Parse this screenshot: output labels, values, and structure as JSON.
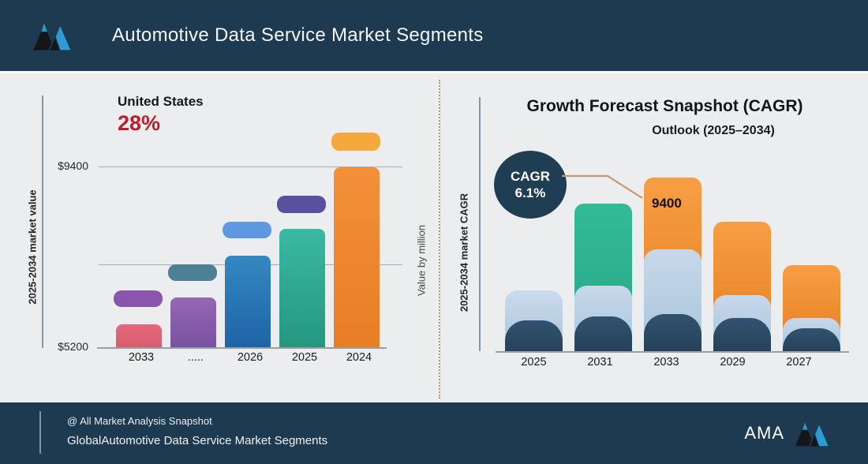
{
  "header": {
    "title": "Automotive Data Service Market Segments",
    "brand": "AMA"
  },
  "chart_data": [
    {
      "type": "bar",
      "region_label": "United States",
      "highlight_value": "28%",
      "axis_label_left": "2025-2034 market value",
      "axis_label_right": "Value by million",
      "y_range": [
        5200,
        9400
      ],
      "y_ticks": [
        {
          "label": "$9400",
          "value": 9400
        },
        {
          "label": "$5200",
          "value": 5200
        }
      ],
      "categories": [
        "2033",
        ".....",
        "2026",
        "2025",
        "2024"
      ],
      "columns": [
        {
          "category": "2033",
          "value": 5730,
          "bar_color_top": "#e5697e",
          "bar_color_bottom": "#d75c6d",
          "cap": {
            "from": 6140,
            "to": 6530,
            "color": "#8a55ad"
          }
        },
        {
          "category": ".....",
          "value": 6360,
          "bar_color_top": "#9468b4",
          "bar_color_bottom": "#7a50a0",
          "cap": {
            "from": 6750,
            "to": 7120,
            "color": "#4d7f96"
          }
        },
        {
          "category": "2026",
          "value": 7330,
          "bar_color_top": "#3488c2",
          "bar_color_bottom": "#1f63a6",
          "cap": {
            "from": 7730,
            "to": 8120,
            "color": "#5e98e1"
          }
        },
        {
          "category": "2025",
          "value": 7950,
          "bar_color_top": "#3ab9a1",
          "bar_color_bottom": "#259781",
          "cap": {
            "from": 8320,
            "to": 8730,
            "color": "#59509e"
          }
        },
        {
          "category": "2024",
          "value": 9380,
          "bar_color_top": "#f29039",
          "bar_color_bottom": "#e87e25",
          "cap": {
            "from": 9770,
            "to": 10180,
            "color": "#f5a83e"
          }
        }
      ]
    },
    {
      "type": "stacked-bar",
      "title": "Growth Forecast Snapshot (CAGR)",
      "subtitle": "Outlook (2025–2034)",
      "badge": {
        "title": "CAGR",
        "value": "6.1%"
      },
      "axis_label_left": "2025-2034 market CAGR",
      "data_label": {
        "category": "2033",
        "text": "9400"
      },
      "reference_value": 9400,
      "categories": [
        "2025",
        "2031",
        "2033",
        "2029",
        "2027"
      ],
      "bars": [
        {
          "category": "2025",
          "segments": [
            {
              "name": "base",
              "value": 1650,
              "color_top": "#315270",
              "color_bottom": "#27425a"
            },
            {
              "name": "middle",
              "value": 1650,
              "color_top": "#cadbec",
              "color_bottom": "#a9c4da"
            }
          ]
        },
        {
          "category": "2031",
          "segments": [
            {
              "name": "base",
              "value": 1900,
              "color_top": "#315270",
              "color_bottom": "#27425a"
            },
            {
              "name": "middle",
              "value": 1650,
              "color_top": "#c7d8ea",
              "color_bottom": "#a9c4da"
            },
            {
              "name": "top",
              "value": 4450,
              "color_top": "#33bb98",
              "color_bottom": "#28a485"
            }
          ]
        },
        {
          "category": "2033",
          "segments": [
            {
              "name": "base",
              "value": 2000,
              "color_top": "#315270",
              "color_bottom": "#27425a"
            },
            {
              "name": "middle",
              "value": 3500,
              "color_top": "#c7d8ea",
              "color_bottom": "#a9c4da"
            },
            {
              "name": "top",
              "value": 3900,
              "color_top": "#f79e44",
              "color_bottom": "#e67d1f"
            }
          ]
        },
        {
          "category": "2029",
          "segments": [
            {
              "name": "base",
              "value": 1800,
              "color_top": "#315270",
              "color_bottom": "#27425a"
            },
            {
              "name": "middle",
              "value": 1250,
              "color_top": "#c7d8ea",
              "color_bottom": "#a9c4da"
            },
            {
              "name": "top",
              "value": 3950,
              "color_top": "#f79e44",
              "color_bottom": "#e67d1f"
            }
          ]
        },
        {
          "category": "2027",
          "segments": [
            {
              "name": "base",
              "value": 1250,
              "color_top": "#315270",
              "color_bottom": "#27425a"
            },
            {
              "name": "middle",
              "value": 550,
              "color_top": "#c7d8ea",
              "color_bottom": "#a9c4da"
            },
            {
              "name": "top",
              "value": 2850,
              "color_top": "#f79e44",
              "color_bottom": "#e67d1f"
            }
          ]
        }
      ]
    }
  ],
  "footer": {
    "line1": "@ All Market Analysis Snapshot",
    "line2": "GlobalAutomotive Data Service Market Segments",
    "brand": "AMA"
  },
  "colors": {
    "header_bg": "#1d3a50",
    "content_bg": "#ecedee",
    "accent_red": "#bf1c2c",
    "badge_bg": "#1f3d53",
    "connector": "#c49a6d",
    "divider": "#b5956a"
  }
}
